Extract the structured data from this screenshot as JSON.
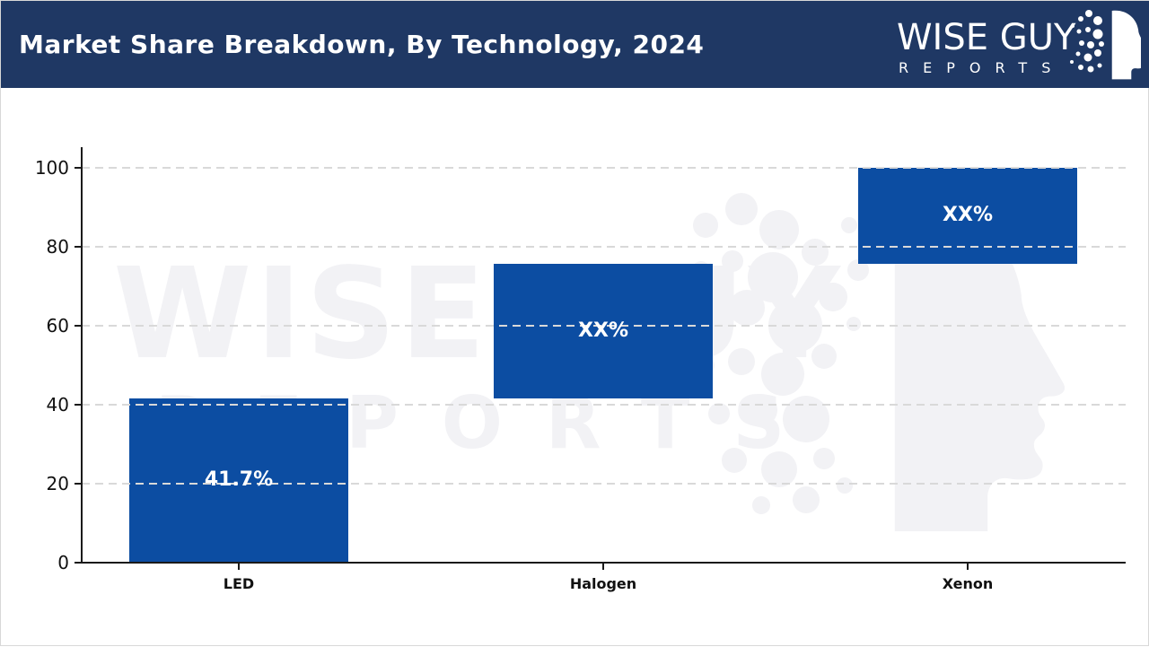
{
  "header": {
    "title": "Market Share Breakdown, By Technology, 2024",
    "logo": {
      "line1": "WISE GUY",
      "line2": "REPORTS"
    }
  },
  "watermark": {
    "line1": "WISE GUY",
    "line2": "REPORTS"
  },
  "colors": {
    "header_bg": "#1F3864",
    "bar": "#0C4DA2",
    "grid": "#D9D9D9",
    "axis": "#1A1A1A",
    "title_text": "#FFFFFF",
    "bar_label_text": "#FFFFFF",
    "watermark": "#F2F2F5"
  },
  "chart_data": {
    "type": "bar",
    "subtype": "waterfall",
    "title": "Market Share Breakdown, By Technology, 2024",
    "categories": [
      "LED",
      "Halogen",
      "Xenon"
    ],
    "segments": [
      {
        "category": "LED",
        "start": 0,
        "end": 41.7,
        "label": "41.7%"
      },
      {
        "category": "Halogen",
        "start": 41.7,
        "end": 75.7,
        "label": "XX%"
      },
      {
        "category": "Xenon",
        "start": 75.7,
        "end": 100,
        "label": "XX%"
      }
    ],
    "series": [
      {
        "name": "Market Share %",
        "values": [
          41.7,
          34.0,
          24.3
        ]
      }
    ],
    "value_labels": [
      "41.7%",
      "XX%",
      "XX%"
    ],
    "xlabel": "",
    "ylabel": "",
    "y_ticks": [
      0,
      20,
      40,
      60,
      80,
      100
    ],
    "ylim": [
      0,
      105
    ],
    "grid": "horizontal-dashed",
    "gridlines_above_bars": true,
    "legend": "none"
  }
}
